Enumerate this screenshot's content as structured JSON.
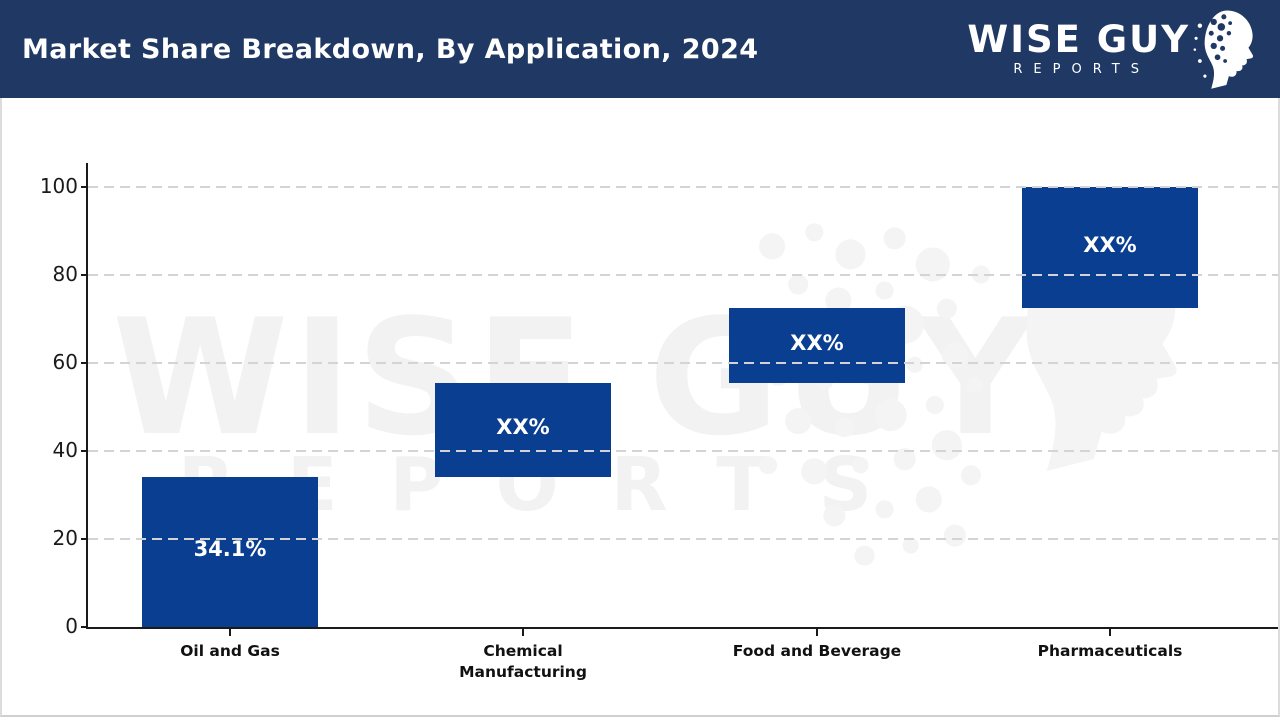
{
  "header": {
    "title": "Market Share Breakdown, By Application, 2024",
    "bg_color": "#1F3864",
    "logo": {
      "line1": "WISE GUY",
      "line2": "REPORTS"
    }
  },
  "watermark": {
    "line1": "WISE GUY",
    "line2": "REPORTS"
  },
  "chart_data": {
    "type": "bar",
    "subtype": "waterfall",
    "title": "Market Share Breakdown, By Application, 2024",
    "categories": [
      "Oil and Gas",
      "Chemical\nManufacturing",
      "Food and Beverage",
      "Pharmaceuticals"
    ],
    "segments": [
      {
        "category": "Oil and Gas",
        "start": 0,
        "end": 34.1,
        "label": "34.1%"
      },
      {
        "category": "Chemical Manufacturing",
        "start": 34.1,
        "end": 55.4,
        "label": "XX%"
      },
      {
        "category": "Food and Beverage",
        "start": 55.4,
        "end": 72.5,
        "label": "XX%"
      },
      {
        "category": "Pharmaceuticals",
        "start": 72.5,
        "end": 100,
        "label": "XX%"
      }
    ],
    "ylabel": "",
    "xlabel": "",
    "ylim": [
      0,
      100
    ],
    "yticks": [
      0,
      20,
      40,
      60,
      80,
      100
    ],
    "grid": "horizontal dashed gridlines drawn over bars",
    "legend": null,
    "bar_color": "#0A3E91",
    "bar_label_color": "#ffffff",
    "axis_color": "#1a1a1a",
    "gridline_color": "#d4d4d4"
  }
}
